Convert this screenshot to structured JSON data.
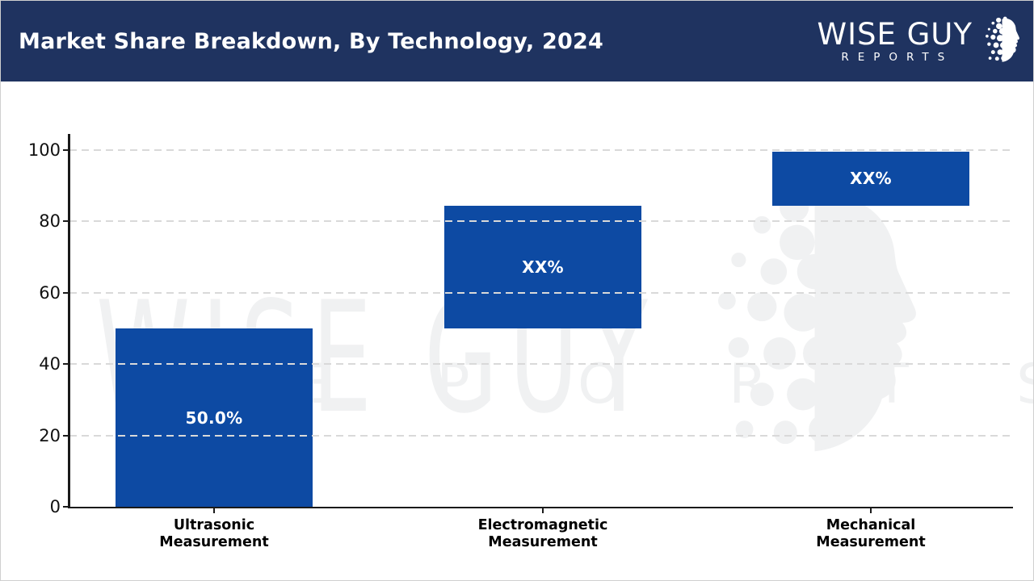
{
  "header": {
    "title": "Market Share Breakdown, By Technology, 2024",
    "logo": {
      "line1": "WISE GUY",
      "line2": "REPORTS"
    }
  },
  "watermark": {
    "line1": "WISE GUY",
    "line2": "R E P O R T S"
  },
  "chart_data": {
    "type": "bar",
    "subtype": "floating-waterfall",
    "title": "Market Share Breakdown, By Technology, 2024",
    "categories": [
      "Ultrasonic Measurement",
      "Electromagnetic Measurement",
      "Mechanical Measurement"
    ],
    "category_lines": [
      [
        "Ultrasonic",
        "Measurement"
      ],
      [
        "Electromagnetic",
        "Measurement"
      ],
      [
        "Mechanical",
        "Measurement"
      ]
    ],
    "bars": [
      {
        "category": "Ultrasonic Measurement",
        "start": 0,
        "end": 50,
        "label": "50.0%"
      },
      {
        "category": "Electromagnetic Measurement",
        "start": 50,
        "end": 84.5,
        "label": "XX%"
      },
      {
        "category": "Mechanical Measurement",
        "start": 84.5,
        "end": 99.5,
        "label": "XX%"
      }
    ],
    "ylim": [
      0,
      100
    ],
    "yticks": [
      0,
      20,
      40,
      60,
      80,
      100
    ],
    "xlabel": "",
    "ylabel": "",
    "grid": "horizontal-dashed",
    "legend": "none",
    "bar_color": "#0d4aa3",
    "bar_label_color": "#ffffff",
    "axis_color": "#1a1a1a",
    "grid_color": "#d9d9d9",
    "header_bg": "#1f3360",
    "watermark_color": "#f0f1f2"
  }
}
